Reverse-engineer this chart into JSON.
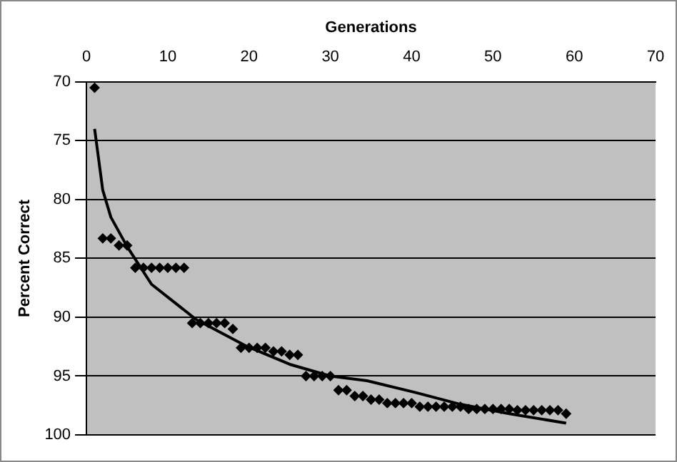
{
  "chart_data": {
    "type": "scatter",
    "xlabel": "Generations",
    "ylabel": "Percent Correct",
    "xlim": [
      0,
      70
    ],
    "xticks": [
      0,
      10,
      20,
      30,
      40,
      50,
      60,
      70
    ],
    "ylim": [
      100,
      70
    ],
    "yticks": [
      70,
      75,
      80,
      85,
      90,
      95,
      100
    ],
    "grid": "y",
    "legend": false,
    "marker": "diamond",
    "series": [
      {
        "type": "scatter",
        "color": "#000000",
        "x": [
          1,
          2,
          3,
          4,
          5,
          6,
          7,
          8,
          9,
          10,
          11,
          12,
          13,
          14,
          15,
          16,
          17,
          18,
          19,
          20,
          21,
          22,
          23,
          24,
          25,
          26,
          27,
          28,
          29,
          30,
          31,
          32,
          33,
          34,
          35,
          36,
          37,
          38,
          39,
          40,
          41,
          42,
          43,
          44,
          45,
          46,
          47,
          48,
          49,
          50,
          51,
          52,
          53,
          54,
          55,
          56,
          57,
          58,
          59
        ],
        "values": [
          70.5,
          83.3,
          83.3,
          83.9,
          83.9,
          85.8,
          85.8,
          85.8,
          85.8,
          85.8,
          85.8,
          85.8,
          90.5,
          90.5,
          90.5,
          90.5,
          90.5,
          91.0,
          92.6,
          92.6,
          92.6,
          92.6,
          92.9,
          92.9,
          93.2,
          93.2,
          95.0,
          95.0,
          95.0,
          95.0,
          96.2,
          96.2,
          96.7,
          96.7,
          97.0,
          97.0,
          97.3,
          97.3,
          97.3,
          97.3,
          97.6,
          97.6,
          97.6,
          97.6,
          97.6,
          97.6,
          97.8,
          97.8,
          97.8,
          97.8,
          97.8,
          97.8,
          97.9,
          97.9,
          97.9,
          97.9,
          97.9,
          97.9,
          98.2
        ]
      },
      {
        "type": "line",
        "color": "#000000",
        "marker": "none",
        "x": [
          1,
          2,
          3,
          5,
          8,
          13.5,
          19.5,
          25,
          30,
          34.5,
          40.5,
          46,
          52,
          59
        ],
        "values": [
          74.0,
          79.2,
          81.5,
          84.0,
          87.2,
          90.2,
          92.4,
          94.0,
          95.0,
          95.4,
          96.4,
          97.4,
          98.2,
          99.0
        ]
      }
    ]
  }
}
